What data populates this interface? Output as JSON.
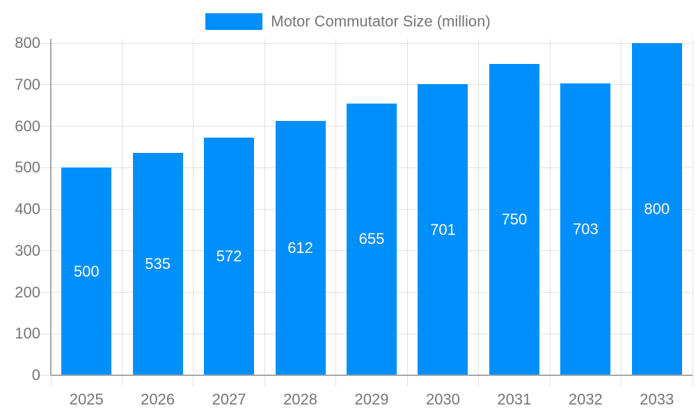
{
  "chart_data": {
    "type": "bar",
    "title": "Motor Commutator Size (million)",
    "legend": [
      {
        "label": "Motor Commutator Size (million)",
        "color": "#008FFB"
      }
    ],
    "legend_position": "top",
    "categories": [
      "2025",
      "2026",
      "2027",
      "2028",
      "2029",
      "2030",
      "2031",
      "2032",
      "2033"
    ],
    "series": [
      {
        "name": "Motor Commutator Size (million)",
        "values": [
          500,
          535,
          572,
          612,
          655,
          701,
          750,
          703,
          800
        ]
      }
    ],
    "value_labels_shown": true,
    "value_label_position": "center",
    "xlabel": "",
    "ylabel": "",
    "ylim": [
      0,
      800
    ],
    "yticks": [
      0,
      100,
      200,
      300,
      400,
      500,
      600,
      700,
      800
    ],
    "grid": true,
    "colors": {
      "bar": "#008FFB",
      "value_label": "#ffffff",
      "axis_label": "#757575",
      "gridline": "#e0e0e0",
      "axis_line": "#a6a6a6",
      "legend_text": "#757575",
      "background": "#ffffff"
    }
  }
}
